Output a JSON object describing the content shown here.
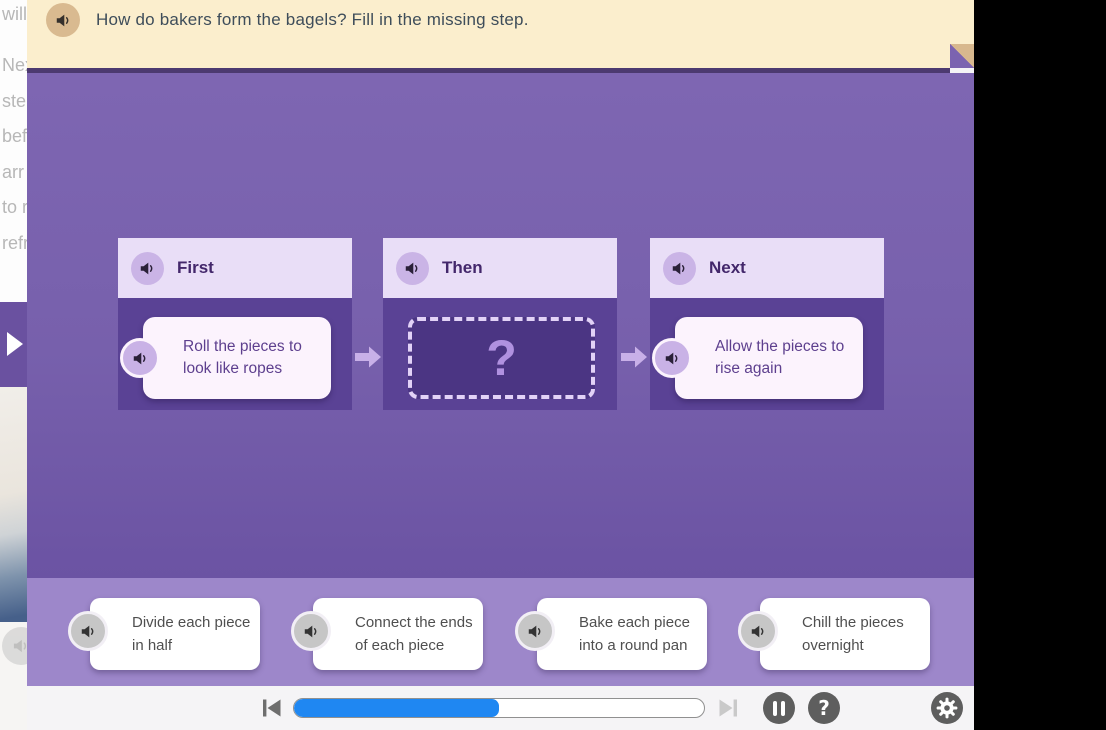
{
  "banner": {
    "question": "How do bakers form the bagels? Fill in the missing step."
  },
  "sequence": {
    "cards": [
      {
        "label": "First",
        "text": "Roll the pieces to look like ropes"
      },
      {
        "label": "Then",
        "placeholder": "?"
      },
      {
        "label": "Next",
        "text": "Allow the pieces to rise again"
      }
    ]
  },
  "choices": [
    {
      "text": "Divide each piece in half"
    },
    {
      "text": "Connect the ends of each piece"
    },
    {
      "text": "Bake each piece into a round pan"
    },
    {
      "text": "Chill the pieces overnight"
    }
  ],
  "player": {
    "progress_percent": 50,
    "help_label": "?"
  },
  "background_page": {
    "text_fragments": [
      "will",
      "Nex",
      "ste",
      "bef",
      "arr",
      "to r",
      "refr"
    ]
  },
  "colors": {
    "banner_cream": "#fbeecd",
    "main_purple": "#7b63b0",
    "card_purple": "#5a4295",
    "choices_purple": "#9d87ca",
    "accent_blue": "#1f87f2"
  }
}
